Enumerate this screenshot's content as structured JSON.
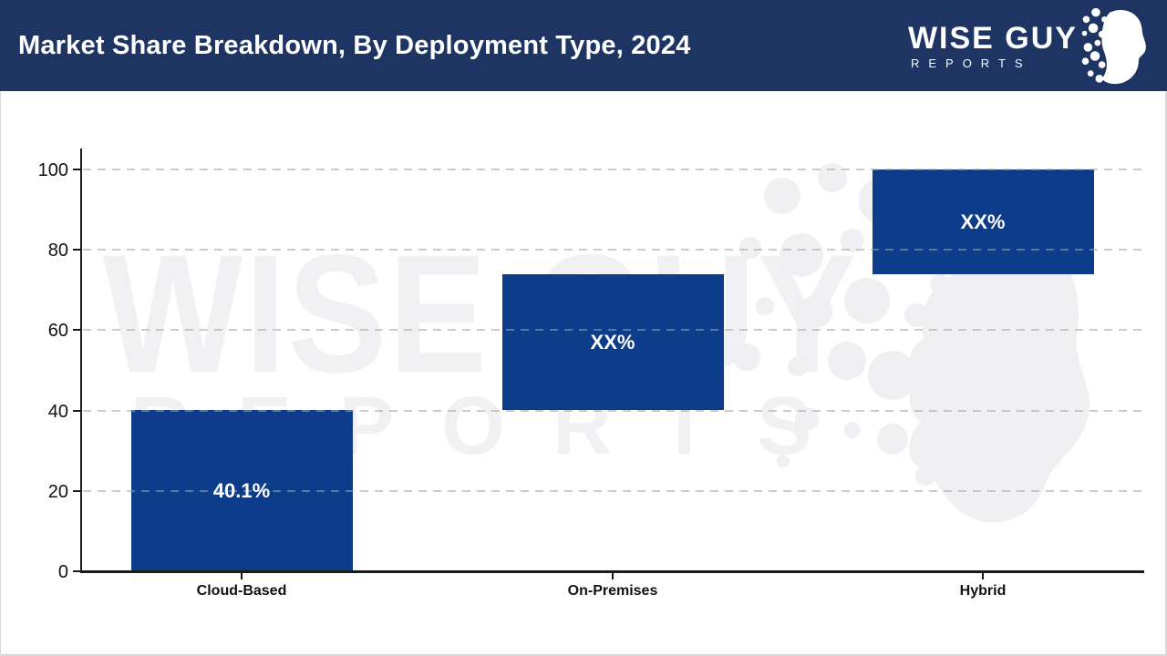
{
  "header": {
    "title": "Market Share Breakdown, By Deployment Type, 2024",
    "logo": {
      "wordmark": "WISE GUY",
      "sub": "REPORTS"
    }
  },
  "watermark": {
    "wordmark": "WISE GUY",
    "sub": "REPORTS"
  },
  "colors": {
    "header_navy": "#1e3463",
    "bar_blue": "#0d3c8b",
    "axis_black": "#1a1a1a",
    "grid_gray": "#d9d9d9",
    "watermark_gray": "#f1f1f3",
    "label_white": "#ffffff"
  },
  "chart_data": {
    "type": "bar",
    "subtype": "floating-waterfall",
    "title": "Market Share Breakdown, By Deployment Type, 2024",
    "categories": [
      "Cloud-Based",
      "On-Premises",
      "Hybrid"
    ],
    "segments": [
      {
        "category": "Cloud-Based",
        "start": 0,
        "end": 40.1,
        "label": "40.1%"
      },
      {
        "category": "On-Premises",
        "start": 40.1,
        "end": 73.9,
        "label": "XX%"
      },
      {
        "category": "Hybrid",
        "start": 73.9,
        "end": 100,
        "label": "XX%"
      }
    ],
    "xlabel": "",
    "ylabel": "",
    "yticks": [
      0,
      20,
      40,
      60,
      80,
      100
    ],
    "ylim": [
      0,
      105
    ],
    "grid": "horizontal dashed, drawn above bars",
    "legend": "none",
    "bar_color": "#0d3c8b",
    "value_label_color": "#ffffff"
  }
}
